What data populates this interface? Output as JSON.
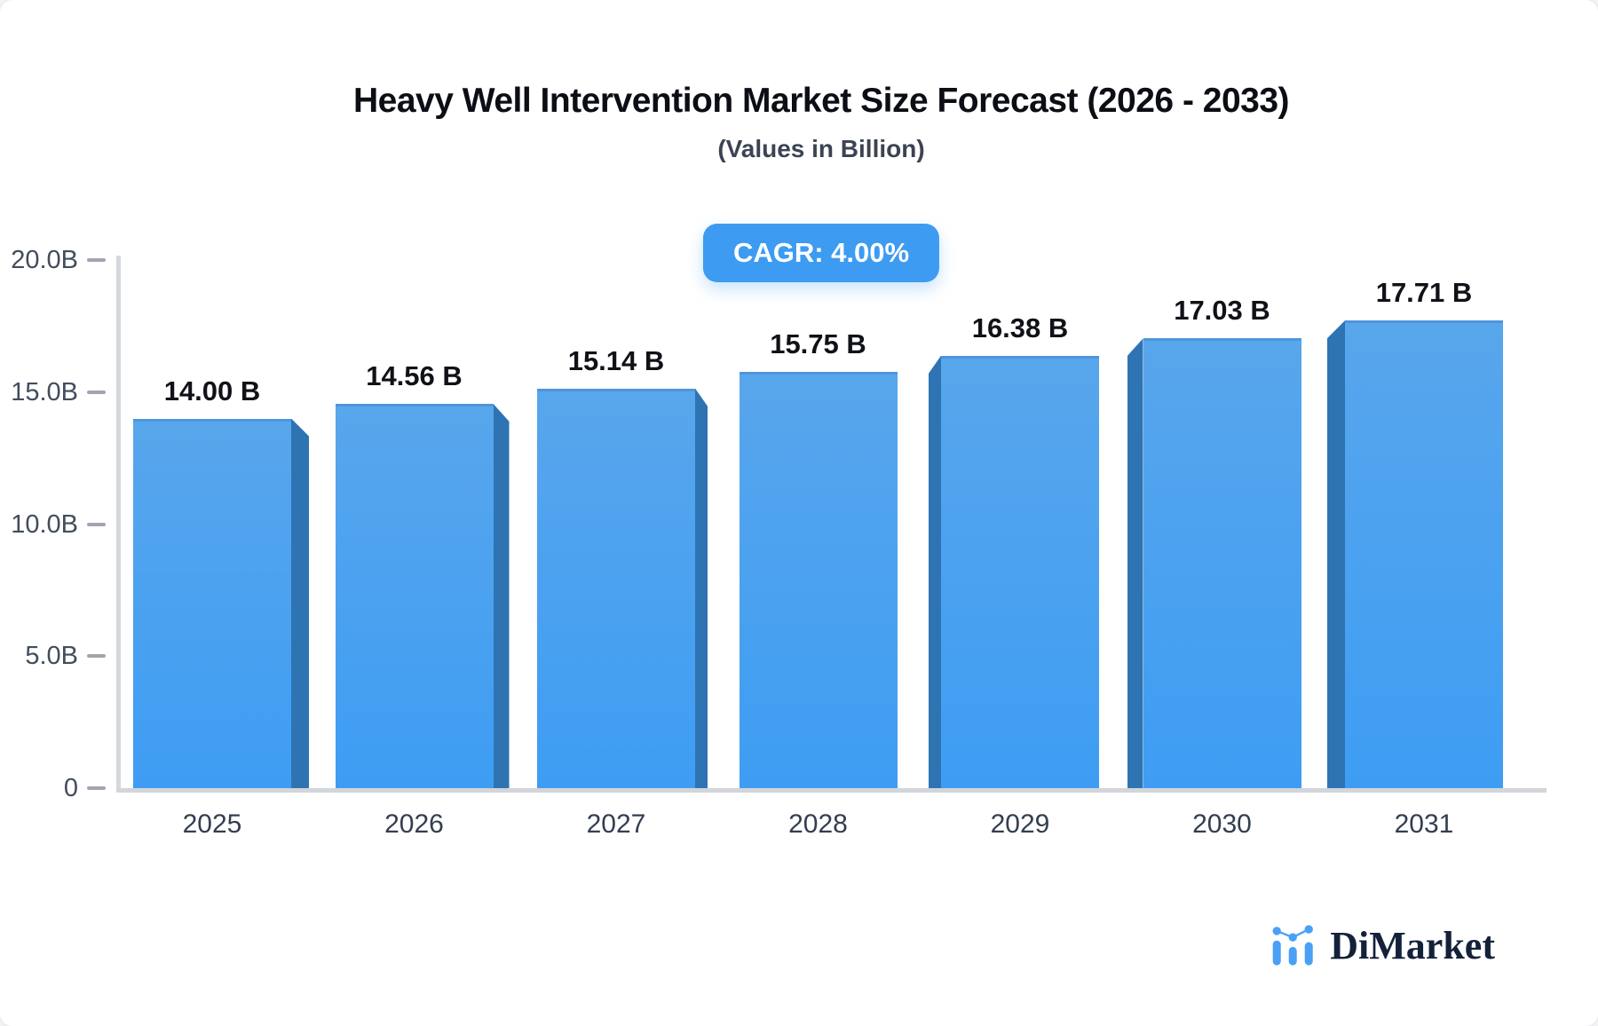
{
  "chart_data": {
    "type": "bar",
    "title": "Heavy Well Intervention Market Size Forecast (2026 - 2033)",
    "subtitle": "(Values in Billion)",
    "cagr_badge": "CAGR: 4.00%",
    "categories": [
      "2025",
      "2026",
      "2027",
      "2028",
      "2029",
      "2030",
      "2031"
    ],
    "values": [
      14.0,
      14.56,
      15.14,
      15.75,
      16.38,
      17.03,
      17.71
    ],
    "bar_labels": [
      "14.00 B",
      "14.56 B",
      "15.14 B",
      "15.75 B",
      "16.38 B",
      "17.03 B",
      "17.71 B"
    ],
    "xlabel": "",
    "ylabel": "",
    "ylim": [
      0,
      20
    ],
    "yticks": [
      {
        "value": 0,
        "label": "0"
      },
      {
        "value": 5,
        "label": "5.0B"
      },
      {
        "value": 10,
        "label": "10.0B"
      },
      {
        "value": 15,
        "label": "15.0B"
      },
      {
        "value": 20,
        "label": "20.0B"
      }
    ],
    "grid": false,
    "legend": false,
    "colors": {
      "bar_gradient_top": "#58a6ec",
      "bar_gradient_bottom": "#3e9df3",
      "bar_side_face": "#2e74b3",
      "bar_top_edge": "#4e95db",
      "badge_background": "#3d9bf2",
      "badge_text": "#ffffff",
      "axis_line": "#d2d5da",
      "tick_text": "#424d5c",
      "value_label_text": "#101218",
      "category_text": "#333e50"
    }
  },
  "branding": {
    "logo_text": "DiMarket",
    "logo_icon": "bar-line-chart-icon",
    "logo_text_color": "#14213a",
    "logo_icon_color": "#4aa0f6"
  }
}
